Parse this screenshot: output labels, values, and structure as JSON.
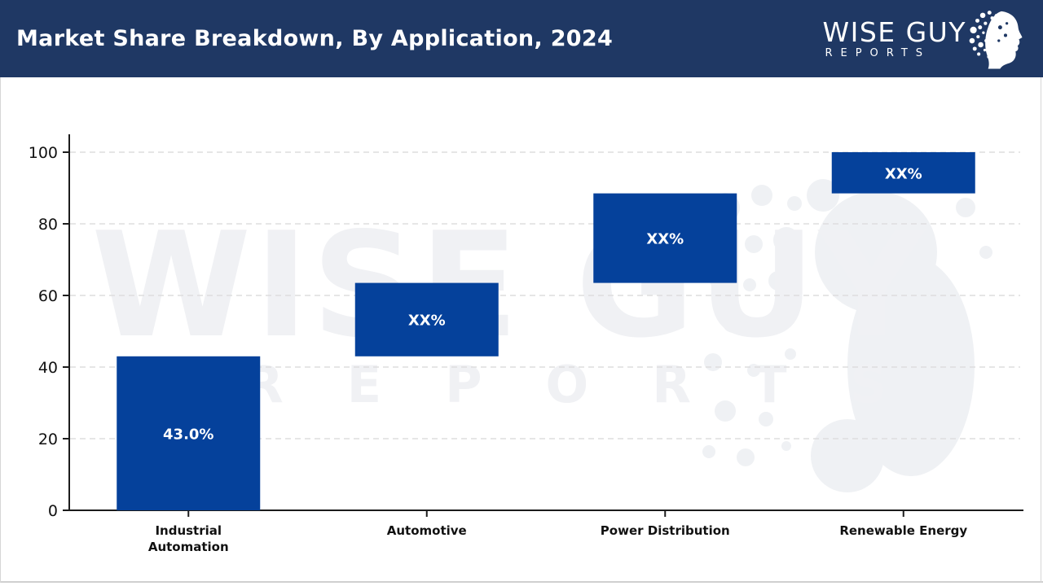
{
  "header": {
    "title": "Market Share Breakdown, By Application, 2024",
    "bg_color": "#1f3864",
    "logo": {
      "line1": "WISE GUY",
      "line2": "REPORTS"
    }
  },
  "watermark": {
    "line1": "WISE GUY",
    "line2": "REPORTS"
  },
  "chart_data": {
    "type": "bar",
    "subtype": "waterfall",
    "title": "Market Share Breakdown, By Application, 2024",
    "categories": [
      "Industrial\nAutomation",
      "Automotive",
      "Power Distribution",
      "Renewable Energy"
    ],
    "segments": [
      {
        "category": "Industrial Automation",
        "start": 0,
        "end": 43.0,
        "label": "43.0%"
      },
      {
        "category": "Automotive",
        "start": 43.0,
        "end": 63.5,
        "label": "XX%"
      },
      {
        "category": "Power Distribution",
        "start": 63.5,
        "end": 88.5,
        "label": "XX%"
      },
      {
        "category": "Renewable Energy",
        "start": 88.5,
        "end": 100.0,
        "label": "XX%"
      }
    ],
    "ylim": [
      0,
      105
    ],
    "yticks": [
      0,
      20,
      40,
      60,
      80,
      100
    ],
    "grid": {
      "axis": "y",
      "style": "dashed",
      "color": "#dedede"
    },
    "bar_color": "#05419b",
    "value_label_color": "#ffffff",
    "axis_color": "#1c1c1c",
    "tick_label_color": "#111111",
    "legend": "none"
  }
}
